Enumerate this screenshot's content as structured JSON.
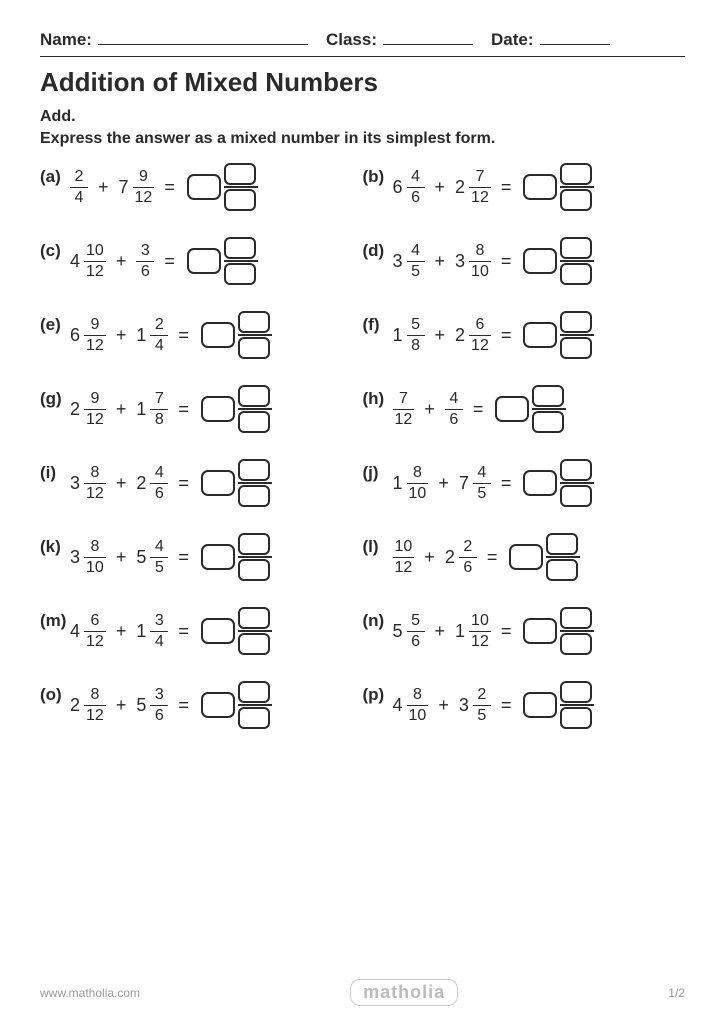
{
  "header": {
    "name_label": "Name:",
    "class_label": "Class:",
    "date_label": "Date:"
  },
  "title": "Addition of Mixed Numbers",
  "instruction_line1": "Add.",
  "instruction_line2": "Express the answer as a mixed number in its simplest form.",
  "problems": [
    {
      "label": "(a)",
      "t1_whole": "",
      "t1_num": "2",
      "t1_den": "4",
      "t2_whole": "7",
      "t2_num": "9",
      "t2_den": "12"
    },
    {
      "label": "(b)",
      "t1_whole": "6",
      "t1_num": "4",
      "t1_den": "6",
      "t2_whole": "2",
      "t2_num": "7",
      "t2_den": "12"
    },
    {
      "label": "(c)",
      "t1_whole": "4",
      "t1_num": "10",
      "t1_den": "12",
      "t2_whole": "",
      "t2_num": "3",
      "t2_den": "6"
    },
    {
      "label": "(d)",
      "t1_whole": "3",
      "t1_num": "4",
      "t1_den": "5",
      "t2_whole": "3",
      "t2_num": "8",
      "t2_den": "10"
    },
    {
      "label": "(e)",
      "t1_whole": "6",
      "t1_num": "9",
      "t1_den": "12",
      "t2_whole": "1",
      "t2_num": "2",
      "t2_den": "4"
    },
    {
      "label": "(f)",
      "t1_whole": "1",
      "t1_num": "5",
      "t1_den": "8",
      "t2_whole": "2",
      "t2_num": "6",
      "t2_den": "12"
    },
    {
      "label": "(g)",
      "t1_whole": "2",
      "t1_num": "9",
      "t1_den": "12",
      "t2_whole": "1",
      "t2_num": "7",
      "t2_den": "8"
    },
    {
      "label": "(h)",
      "t1_whole": "",
      "t1_num": "7",
      "t1_den": "12",
      "t2_whole": "",
      "t2_num": "4",
      "t2_den": "6"
    },
    {
      "label": "(i)",
      "t1_whole": "3",
      "t1_num": "8",
      "t1_den": "12",
      "t2_whole": "2",
      "t2_num": "4",
      "t2_den": "6"
    },
    {
      "label": "(j)",
      "t1_whole": "1",
      "t1_num": "8",
      "t1_den": "10",
      "t2_whole": "7",
      "t2_num": "4",
      "t2_den": "5"
    },
    {
      "label": "(k)",
      "t1_whole": "3",
      "t1_num": "8",
      "t1_den": "10",
      "t2_whole": "5",
      "t2_num": "4",
      "t2_den": "5"
    },
    {
      "label": "(l)",
      "t1_whole": "",
      "t1_num": "10",
      "t1_den": "12",
      "t2_whole": "2",
      "t2_num": "2",
      "t2_den": "6"
    },
    {
      "label": "(m)",
      "t1_whole": "4",
      "t1_num": "6",
      "t1_den": "12",
      "t2_whole": "1",
      "t2_num": "3",
      "t2_den": "4"
    },
    {
      "label": "(n)",
      "t1_whole": "5",
      "t1_num": "5",
      "t1_den": "6",
      "t2_whole": "1",
      "t2_num": "10",
      "t2_den": "12"
    },
    {
      "label": "(o)",
      "t1_whole": "2",
      "t1_num": "8",
      "t1_den": "12",
      "t2_whole": "5",
      "t2_num": "3",
      "t2_den": "6"
    },
    {
      "label": "(p)",
      "t1_whole": "4",
      "t1_num": "8",
      "t1_den": "10",
      "t2_whole": "3",
      "t2_num": "2",
      "t2_den": "5"
    }
  ],
  "footer": {
    "url": "www.matholia.com",
    "logo": "matholia",
    "page": "1/2"
  },
  "style": {
    "text_color": "#2a2a2a",
    "background": "#ffffff",
    "box_border_color": "#2a2a2a",
    "box_border_radius": 7,
    "title_fontsize": 26,
    "body_fontsize": 17
  }
}
